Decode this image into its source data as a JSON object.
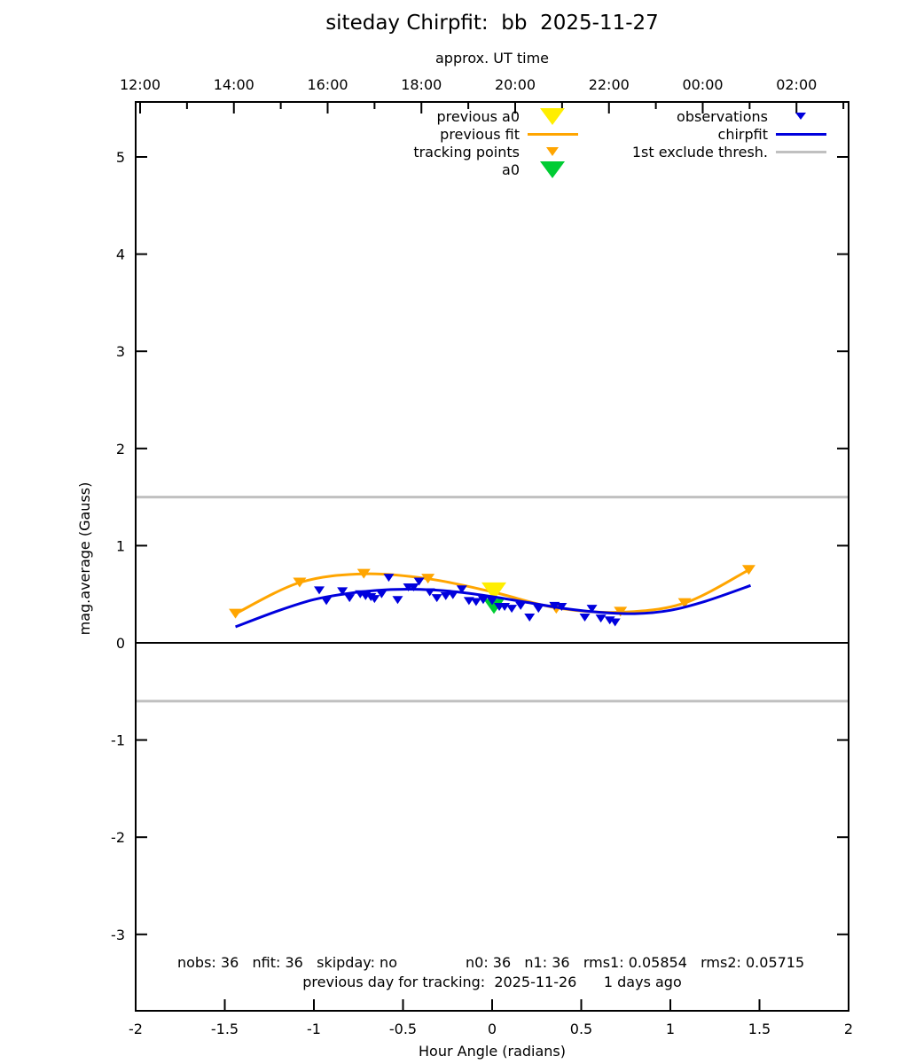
{
  "stats": {
    "line1_left": "nobs: 36   nfit: 36   skipday: no",
    "line1_right": "n0: 36   n1: 36   rms1: 0.05854   rms2: 0.05715",
    "line2": "previous day for tracking:  2025-11-26      1 days ago"
  },
  "chart_data": {
    "type": "scatter",
    "title": "siteday Chirpfit:  bb  2025-11-27",
    "grid": "off",
    "top_axis": {
      "label": "approx. UT time",
      "tick_labels": [
        "12:00",
        "14:00",
        "16:00",
        "18:00",
        "20:00",
        "22:00",
        "00:00",
        "02:00"
      ],
      "tick_hours": [
        12,
        14,
        16,
        18,
        20,
        22,
        24,
        26
      ],
      "minor_tick_hours": [
        13,
        15,
        17,
        19,
        21,
        23,
        25,
        27
      ]
    },
    "x_axis": {
      "label": "Hour Angle (radians)",
      "min": -2,
      "max": 2,
      "tick_values": [
        -2,
        -1.5,
        -1,
        -0.5,
        0,
        0.5,
        1,
        1.5,
        2
      ],
      "tick_labels": [
        "-2",
        "-1.5",
        "-1",
        "-0.5",
        "0",
        "0.5",
        "1",
        "1.5",
        "2"
      ]
    },
    "y_axis": {
      "label": "mag.average (Gauss)",
      "min": -3.79,
      "max": 5.57,
      "tick_values": [
        -3,
        -2,
        -1,
        0,
        1,
        2,
        3,
        4,
        5
      ],
      "tick_labels": [
        "-3",
        "-2",
        "-1",
        "0",
        "1",
        "2",
        "3",
        "4",
        "5"
      ]
    },
    "zero_line_y": 0,
    "exclude_threshold_values": [
      1.5,
      -0.6
    ],
    "colors": {
      "observations": "#0000dd",
      "chirpfit": "#0000dd",
      "previous_fit": "#ffa500",
      "tracking_points": "#ffa500",
      "previous_a0": "#ffee00",
      "a0": "#00cc33",
      "threshold": "#c0c0c0",
      "zero_line": "#000000"
    },
    "series": {
      "previous_fit": {
        "name": "previous fit",
        "type": "line",
        "color": "#ffa500",
        "points": [
          [
            -1.44,
            0.3
          ],
          [
            -1.08,
            0.62
          ],
          [
            -0.72,
            0.71
          ],
          [
            -0.36,
            0.66
          ],
          [
            0.0,
            0.525
          ],
          [
            0.36,
            0.36
          ],
          [
            0.72,
            0.315
          ],
          [
            1.08,
            0.41
          ],
          [
            1.44,
            0.75
          ]
        ]
      },
      "tracking_points": {
        "name": "tracking points",
        "type": "scatter",
        "marker": "triangle-medium",
        "color": "#ffa500",
        "points": [
          [
            -1.44,
            0.3
          ],
          [
            -1.08,
            0.62
          ],
          [
            -0.72,
            0.71
          ],
          [
            -0.36,
            0.66
          ],
          [
            0.36,
            0.35
          ],
          [
            0.72,
            0.32
          ],
          [
            1.08,
            0.41
          ],
          [
            1.44,
            0.75
          ]
        ]
      },
      "previous_a0": {
        "name": "previous a0",
        "type": "scatter",
        "marker": "triangle-xlarge",
        "color": "#ffee00",
        "points": [
          [
            0.01,
            0.53
          ]
        ]
      },
      "a0": {
        "name": "a0",
        "type": "scatter",
        "marker": "triangle-large",
        "color": "#00cc33",
        "points": [
          [
            0.01,
            0.375
          ]
        ]
      },
      "chirpfit": {
        "name": "chirpfit",
        "type": "line",
        "color": "#0000dd",
        "points": [
          [
            -1.44,
            0.165
          ],
          [
            -1.2,
            0.33
          ],
          [
            -1.0,
            0.445
          ],
          [
            -0.8,
            0.51
          ],
          [
            -0.6,
            0.545
          ],
          [
            -0.4,
            0.55
          ],
          [
            -0.2,
            0.525
          ],
          [
            0.0,
            0.475
          ],
          [
            0.2,
            0.415
          ],
          [
            0.4,
            0.355
          ],
          [
            0.6,
            0.315
          ],
          [
            0.8,
            0.3
          ],
          [
            1.0,
            0.335
          ],
          [
            1.2,
            0.43
          ],
          [
            1.45,
            0.59
          ]
        ]
      },
      "observations": {
        "name": "observations",
        "type": "scatter",
        "marker": "triangle-small",
        "color": "#0000dd",
        "points": [
          [
            -0.97,
            0.54
          ],
          [
            -0.93,
            0.43
          ],
          [
            -0.84,
            0.53
          ],
          [
            -0.8,
            0.46
          ],
          [
            -0.74,
            0.5
          ],
          [
            -0.71,
            0.48
          ],
          [
            -0.68,
            0.47
          ],
          [
            -0.66,
            0.45
          ],
          [
            -0.62,
            0.5
          ],
          [
            -0.58,
            0.67
          ],
          [
            -0.53,
            0.44
          ],
          [
            -0.47,
            0.57
          ],
          [
            -0.44,
            0.57
          ],
          [
            -0.41,
            0.63
          ],
          [
            -0.35,
            0.52
          ],
          [
            -0.31,
            0.46
          ],
          [
            -0.26,
            0.48
          ],
          [
            -0.22,
            0.49
          ],
          [
            -0.17,
            0.55
          ],
          [
            -0.13,
            0.43
          ],
          [
            -0.09,
            0.42
          ],
          [
            -0.05,
            0.44
          ],
          [
            0.0,
            0.43
          ],
          [
            0.04,
            0.37
          ],
          [
            0.07,
            0.37
          ],
          [
            0.11,
            0.35
          ],
          [
            0.16,
            0.38
          ],
          [
            0.21,
            0.26
          ],
          [
            0.26,
            0.35
          ],
          [
            0.35,
            0.38
          ],
          [
            0.39,
            0.37
          ],
          [
            0.52,
            0.26
          ],
          [
            0.56,
            0.35
          ],
          [
            0.61,
            0.25
          ],
          [
            0.66,
            0.23
          ],
          [
            0.69,
            0.21
          ]
        ]
      }
    },
    "legend": {
      "position": "top-inside",
      "left": [
        {
          "label": "previous a0",
          "marker": "large",
          "color": "#ffee00"
        },
        {
          "label": "previous fit",
          "marker": "line",
          "color": "#ffa500"
        },
        {
          "label": "tracking points",
          "marker": "medium",
          "color": "#ffa500"
        },
        {
          "label": "a0",
          "marker": "large",
          "color": "#00cc33"
        }
      ],
      "right": [
        {
          "label": "observations",
          "marker": "small",
          "color": "#0000dd"
        },
        {
          "label": "chirpfit",
          "marker": "line",
          "color": "#0000dd"
        },
        {
          "label": "1st exclude thresh.",
          "marker": "line",
          "color": "#c0c0c0"
        }
      ]
    }
  }
}
